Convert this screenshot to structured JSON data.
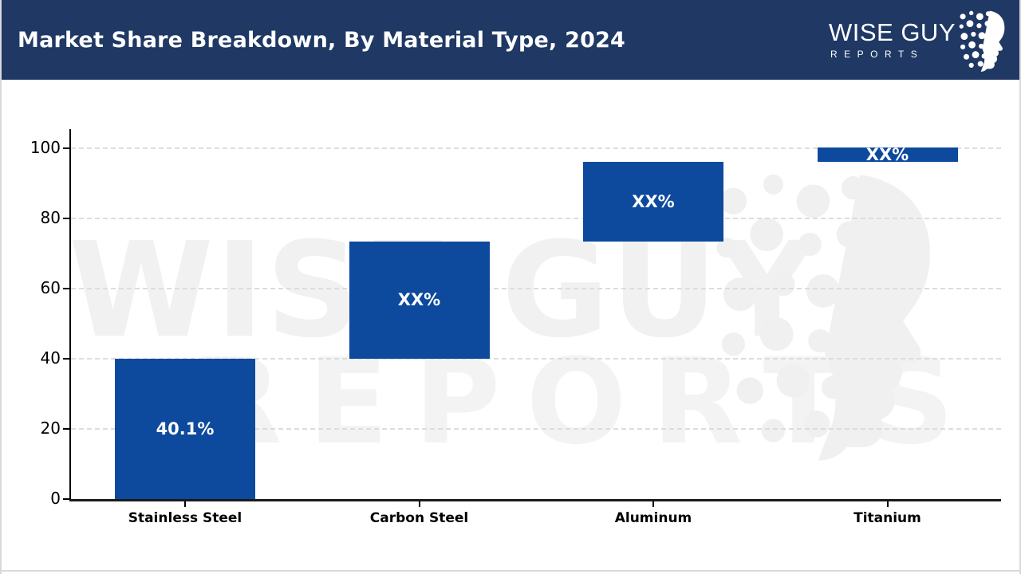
{
  "header": {
    "title": "Market Share Breakdown, By Material Type, 2024",
    "logo": {
      "line1": "WISE GUY",
      "line2": "REPORTS"
    }
  },
  "watermark": {
    "line1": "WISE GUY",
    "line2": "REPORTS"
  },
  "colors": {
    "header_bg": "#1f3864",
    "bar": "#0d4a9e",
    "axis": "#1a1a1a",
    "gridline": "#dcdcdc",
    "bar_label_text": "#ffffff"
  },
  "chart_data": {
    "type": "bar",
    "subtype": "waterfall",
    "title": "Market Share Breakdown, By Material Type, 2024",
    "categories": [
      "Stainless Steel",
      "Carbon Steel",
      "Aluminum",
      "Titanium"
    ],
    "segments": [
      {
        "category": "Stainless Steel",
        "start": 0,
        "end": 40.1,
        "label": "40.1%"
      },
      {
        "category": "Carbon Steel",
        "start": 40.1,
        "end": 73.4,
        "label": "XX%"
      },
      {
        "category": "Aluminum",
        "start": 73.4,
        "end": 96.1,
        "label": "XX%"
      },
      {
        "category": "Titanium",
        "start": 96.1,
        "end": 100.2,
        "label": "XX%"
      }
    ],
    "bar_labels": [
      "40.1%",
      "XX%",
      "XX%",
      "XX%"
    ],
    "yticks": [
      0,
      20,
      40,
      60,
      80,
      100
    ],
    "ylim": [
      0,
      105
    ],
    "xlabel": "",
    "ylabel": "",
    "grid": "dashed-horizontal",
    "legend": "none"
  }
}
